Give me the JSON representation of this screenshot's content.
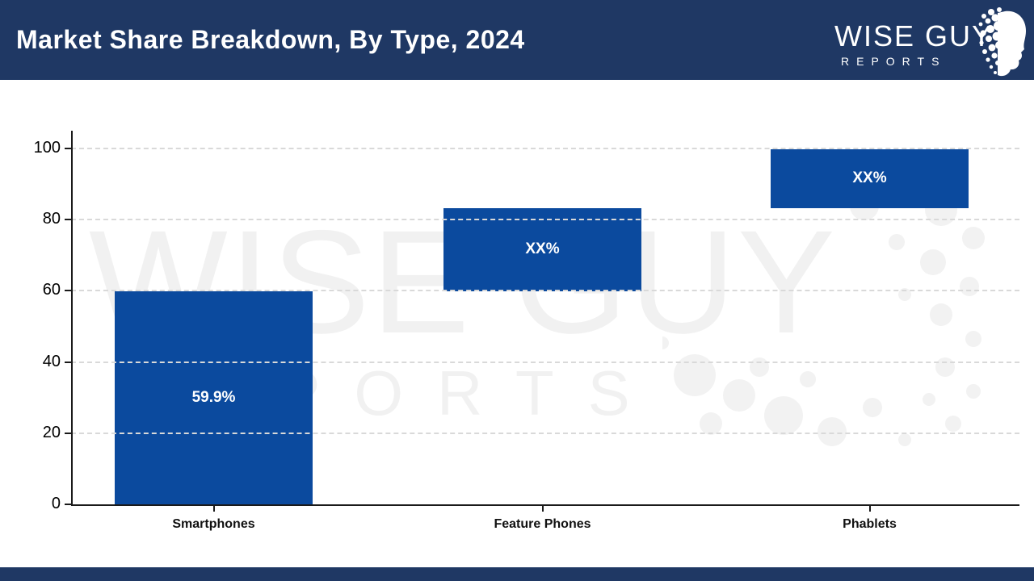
{
  "header": {
    "title": "Market Share Breakdown, By Type, 2024",
    "logo": {
      "line1": "WISE GUY",
      "line2": "REPORTS"
    }
  },
  "watermark": {
    "line1": "WISE GUY",
    "line2": "REPORTS"
  },
  "chart_data": {
    "type": "bar",
    "subtype": "waterfall-floating-bars",
    "title": "Market Share Breakdown, By Type, 2024",
    "categories": [
      "Smartphones",
      "Feature Phones",
      "Phablets"
    ],
    "bars": [
      {
        "category": "Smartphones",
        "start": 0,
        "end": 59.9,
        "label": "59.9%"
      },
      {
        "category": "Feature Phones",
        "start": 59.9,
        "end": 83.2,
        "label": "XX%"
      },
      {
        "category": "Phablets",
        "start": 83.2,
        "end": 99.8,
        "label": "XX%"
      }
    ],
    "xlabel": "",
    "ylabel": "",
    "ylim": [
      0,
      100
    ],
    "yticks": [
      0,
      20,
      40,
      60,
      80,
      100
    ],
    "grid": "horizontal-dashed",
    "legend": "none",
    "bar_color": "#0b4a9e",
    "value_label_color": "#ffffff"
  },
  "colors": {
    "header_bg": "#1f3864",
    "footer_bg": "#1f3864",
    "bar": "#0b4a9e",
    "grid": "#d9d9d9",
    "watermark": "#f1f1f1"
  }
}
